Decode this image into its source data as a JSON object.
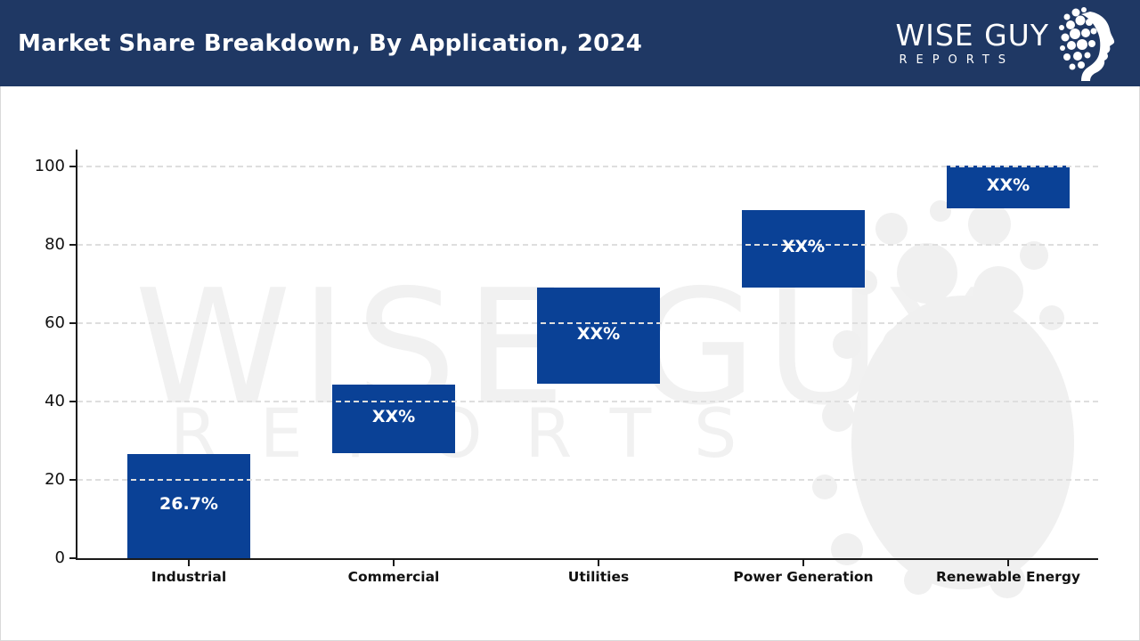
{
  "header": {
    "title": "Market Share Breakdown, By Application, 2024",
    "bg_color": "#1f3864",
    "logo": {
      "line1": "WISE GUY",
      "line2": "REPORTS"
    }
  },
  "watermark": {
    "line1": "WISE GUY",
    "line2": "REPORTS"
  },
  "chart_data": {
    "type": "bar",
    "subtype": "waterfall",
    "title": "Market Share Breakdown, By Application, 2024",
    "categories": [
      "Industrial",
      "Commercial",
      "Utilities",
      "Power Generation",
      "Renewable Energy"
    ],
    "segments": [
      {
        "category": "Industrial",
        "start": 0,
        "end": 26.7,
        "label": "26.7%"
      },
      {
        "category": "Commercial",
        "start": 26.9,
        "end": 44.3,
        "label": "XX%"
      },
      {
        "category": "Utilities",
        "start": 44.6,
        "end": 69.0,
        "label": "XX%"
      },
      {
        "category": "Power Generation",
        "start": 69.2,
        "end": 88.9,
        "label": "XX%"
      },
      {
        "category": "Renewable Energy",
        "start": 89.4,
        "end": 100.2,
        "label": "XX%"
      }
    ],
    "yticks": [
      0,
      20,
      40,
      60,
      80,
      100
    ],
    "ylim": [
      0,
      104
    ],
    "xlabel": "",
    "ylabel": "",
    "bar_color": "#0a4196",
    "grid": "horizontal-dashed",
    "legend": "none"
  }
}
